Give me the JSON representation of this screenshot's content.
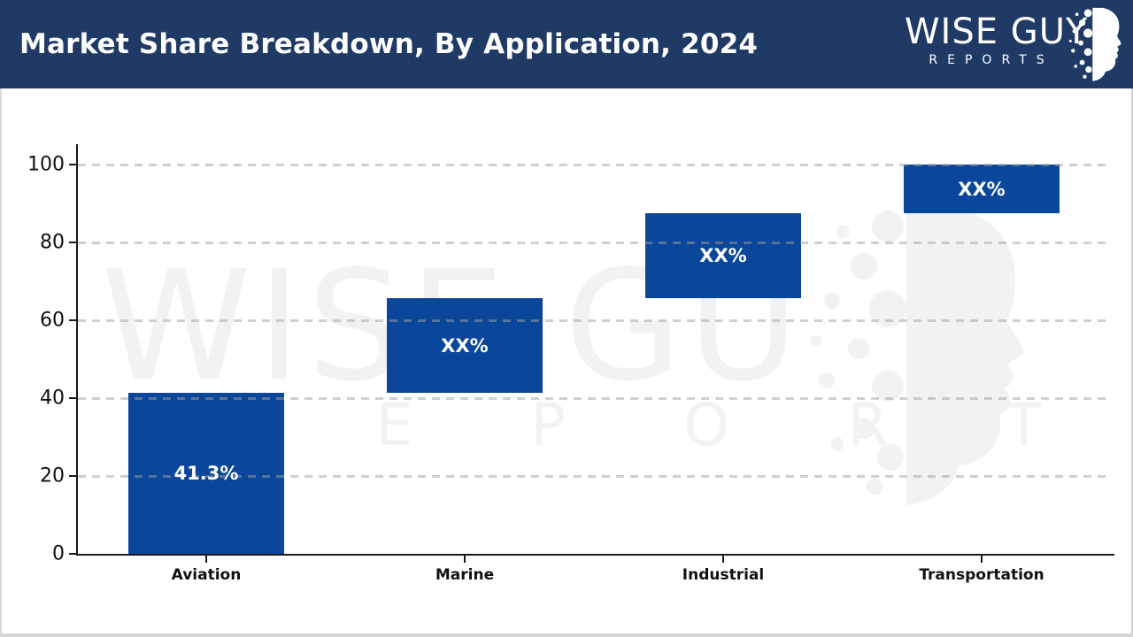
{
  "header": {
    "title": "Market Share Breakdown, By Application, 2024",
    "bg_color": "#203a66",
    "logo": {
      "line1": "WISE GUY",
      "line2": "REPORTS"
    }
  },
  "watermark": {
    "line1": "WISE GU",
    "line2": "R E P O R T S"
  },
  "chart_data": {
    "type": "bar",
    "variant": "waterfall",
    "title": "Market Share Breakdown, By Application, 2024",
    "categories": [
      "Aviation",
      "Marine",
      "Industrial",
      "Transportation"
    ],
    "segments": [
      {
        "category": "Aviation",
        "start": 0,
        "end": 41.3,
        "label": "41.3%"
      },
      {
        "category": "Marine",
        "start": 41.3,
        "end": 65.6,
        "label": "XX%"
      },
      {
        "category": "Industrial",
        "start": 65.6,
        "end": 87.5,
        "label": "XX%"
      },
      {
        "category": "Transportation",
        "start": 87.5,
        "end": 100,
        "label": "XX%"
      }
    ],
    "values_pct": [
      41.3,
      24.3,
      21.9,
      12.5
    ],
    "xlabel": "",
    "ylabel": "",
    "ylim": [
      0,
      100
    ],
    "yticks": [
      0,
      20,
      40,
      60,
      80,
      100
    ],
    "grid": "horizontal-dashed",
    "legend": null,
    "bar_color": "#0a4699",
    "bar_label_color": "#ffffff",
    "axis_color": "#1a1a1a",
    "gridline_color": "rgba(160,160,160,0.5)",
    "watermark_color": "#f1f2f4"
  }
}
